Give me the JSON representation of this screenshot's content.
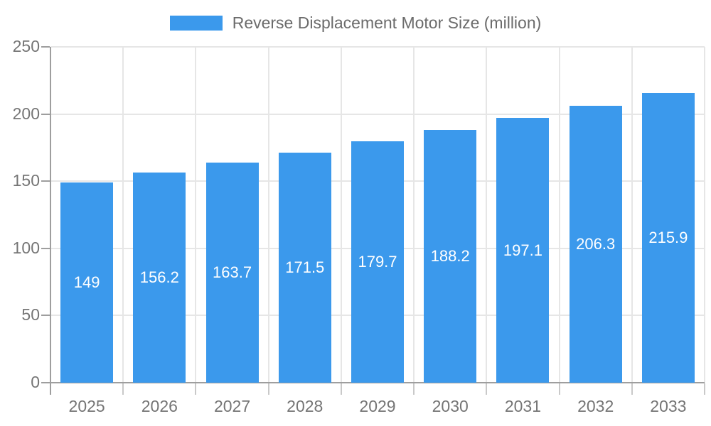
{
  "chart_data": {
    "type": "bar",
    "title": "Reverse Displacement Motor Size (million)",
    "legend": {
      "label": "Reverse Displacement Motor Size (million)",
      "position": "top"
    },
    "categories": [
      "2025",
      "2026",
      "2027",
      "2028",
      "2029",
      "2030",
      "2031",
      "2032",
      "2033"
    ],
    "series": [
      {
        "name": "Reverse Displacement Motor Size (million)",
        "values": [
          149,
          156.2,
          163.7,
          171.5,
          179.7,
          188.2,
          197.1,
          206.3,
          215.9
        ]
      }
    ],
    "value_labels": [
      "149",
      "156.2",
      "163.7",
      "171.5",
      "179.7",
      "188.2",
      "197.1",
      "206.3",
      "215.9"
    ],
    "xlabel": "",
    "ylabel": "",
    "ylim": [
      0,
      250
    ],
    "yticks": [
      0,
      50,
      100,
      150,
      200,
      250
    ],
    "grid": true,
    "colors": {
      "bar": "#3b99ec",
      "value_label": "#ffffff",
      "axis_line": "#9e9e9e",
      "gridline": "#e6e6e6",
      "tick_label": "#757575",
      "legend_text": "#6b6b6b",
      "background": "#ffffff"
    }
  }
}
